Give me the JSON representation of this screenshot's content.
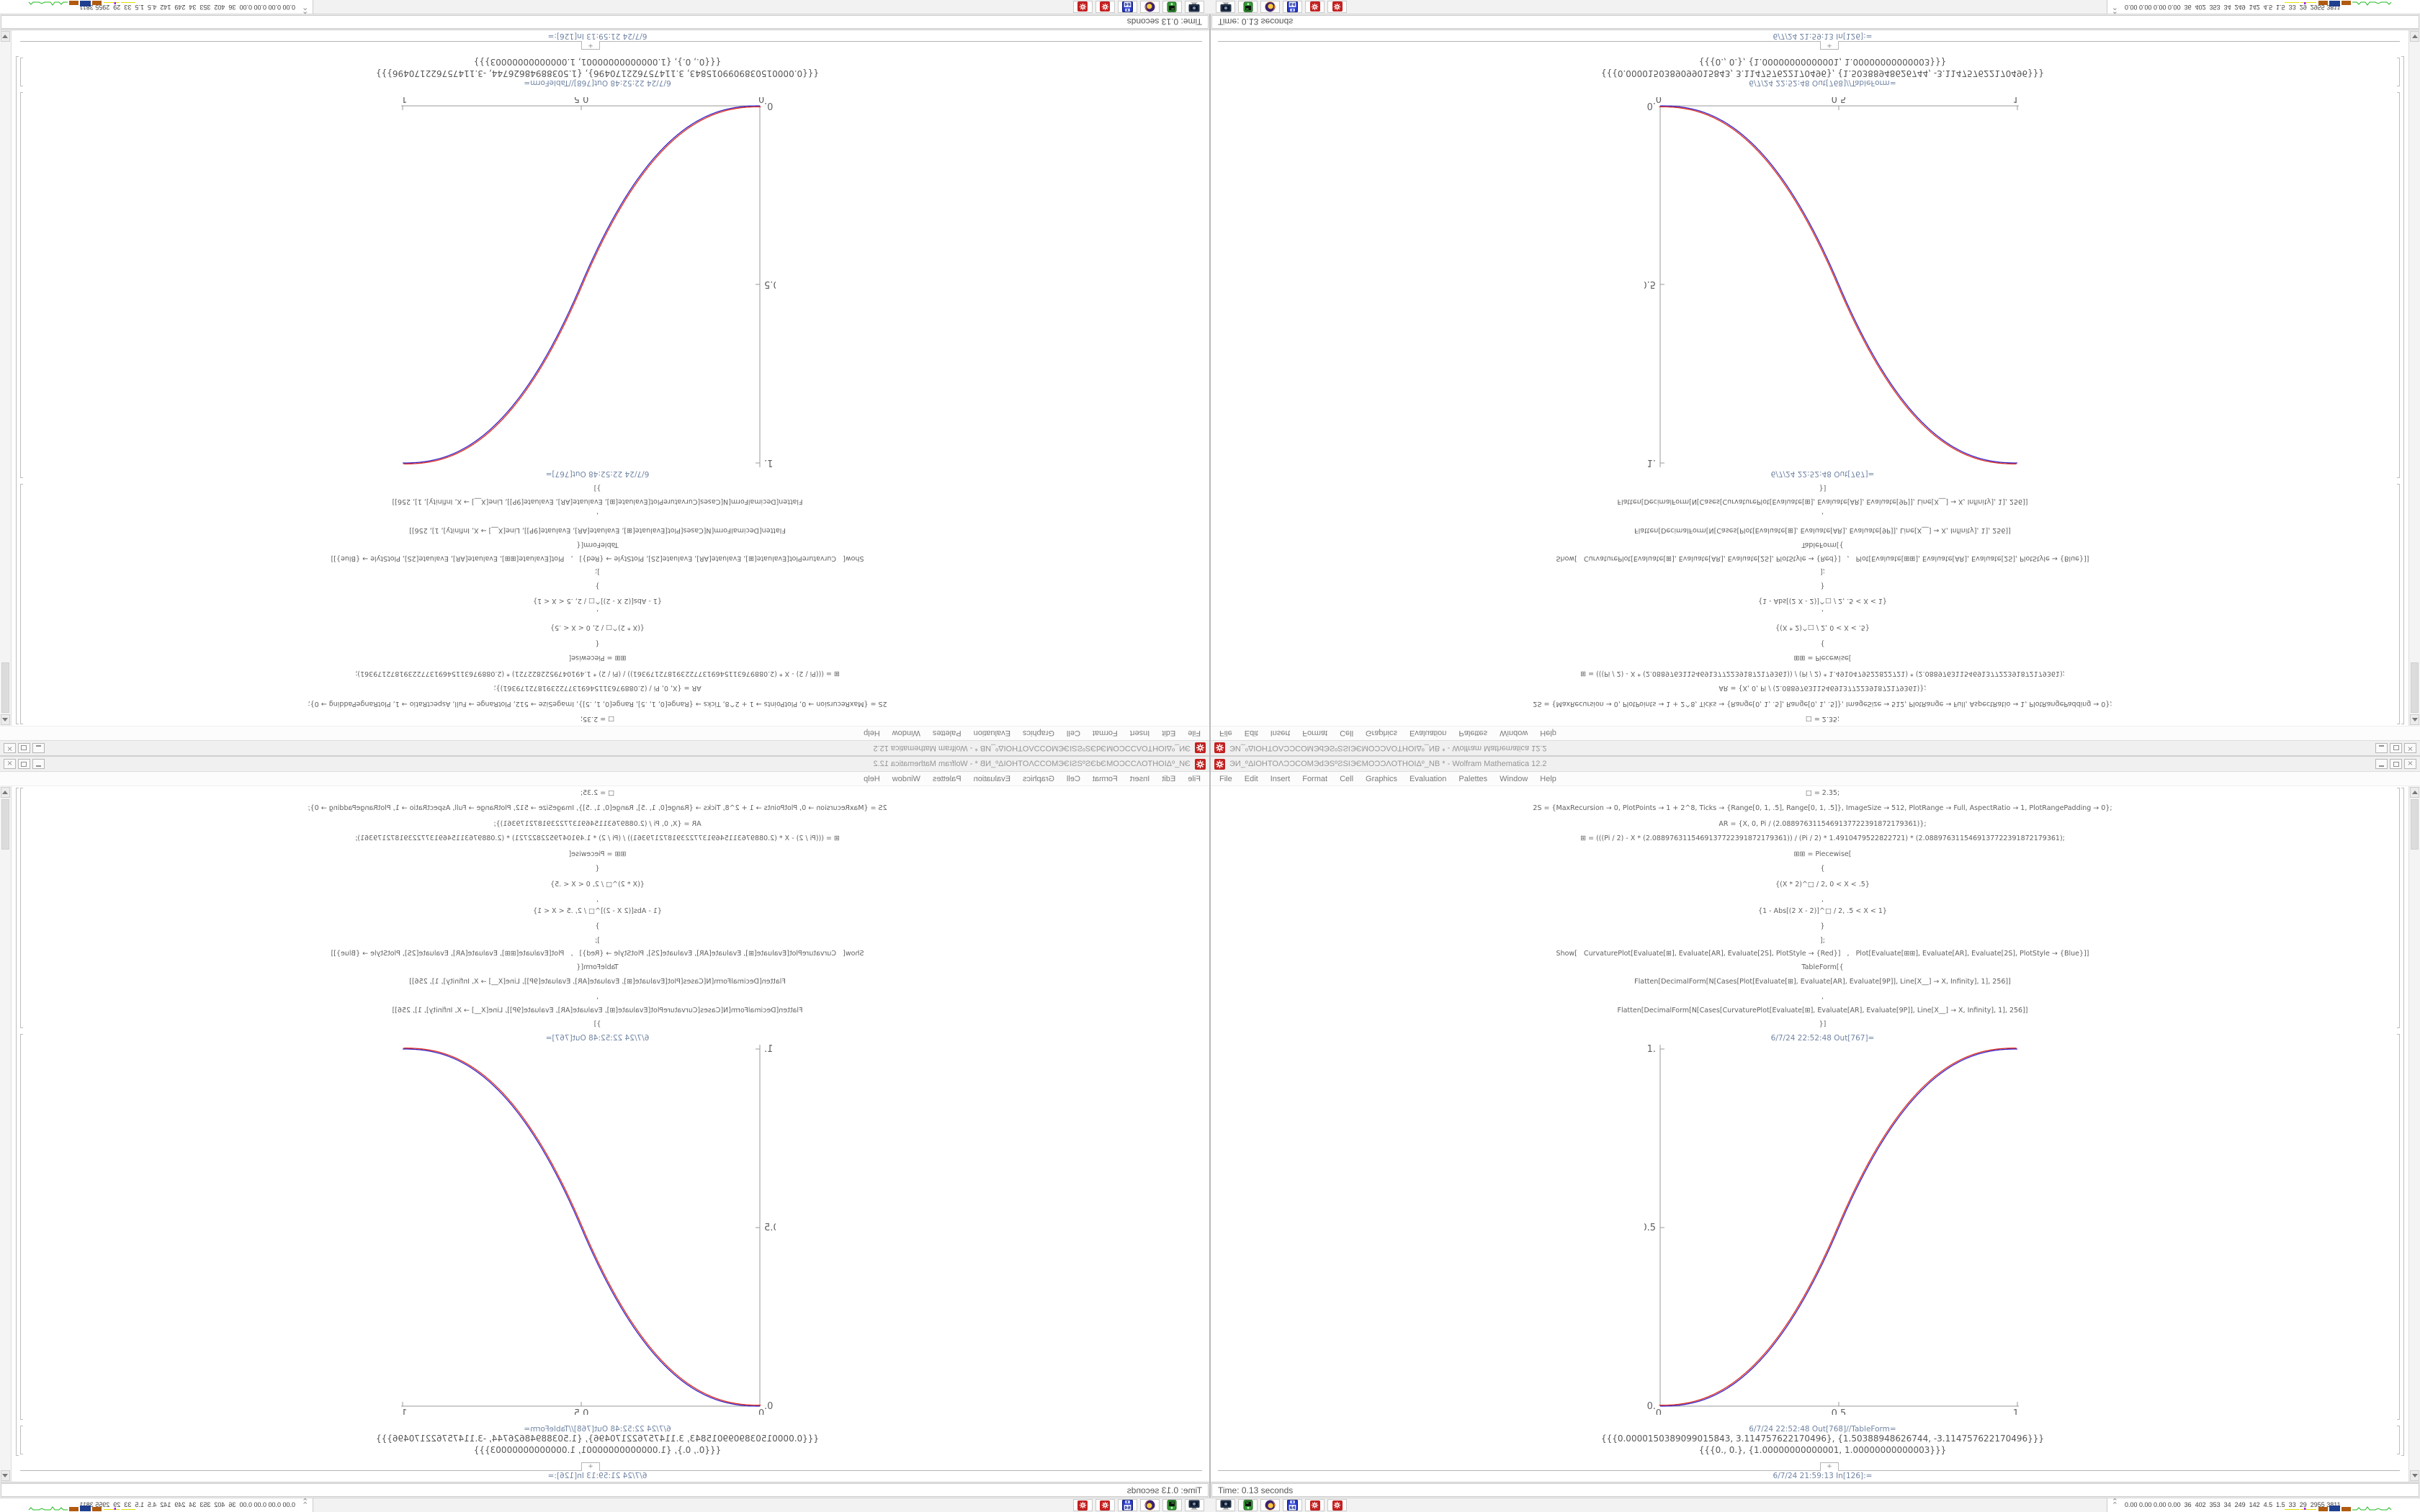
{
  "window": {
    "title": "ЭИ_ºΔIOHTOΛƆƆCOMЭdЭSºƧSIЭЄMOƆƆΛOTHOIΔº_NB * - Wolfram Mathematica 12.2",
    "app_icon": "mathematica-red-gear-icon",
    "menu": [
      "File",
      "Edit",
      "Insert",
      "Format",
      "Cell",
      "Graphics",
      "Evaluation",
      "Palettes",
      "Window",
      "Help"
    ],
    "controls": [
      "minimize",
      "maximize",
      "close"
    ],
    "close_glyph": "×"
  },
  "notebook": {
    "code_lines": [
      "□ = 2.35;",
      "2S = {MaxRecursion → 0, PlotPoints → 1 + 2^8, Ticks → {Range[0, 1, .5], Range[0, 1, .5]}, ImageSize → 512, PlotRange → Full, AspectRatio → 1, PlotRangePadding → 0};",
      "AR = {X, 0, Pi / (2.0889763115469137722391872179361)};",
      "⊞ = (((Pi / 2) - X * (2.0889763115469137722391872179361)) / (Pi / 2) * 1.4910479522822721) * (2.0889763115469137722391872179361);",
      "⊞⊞ = Piecewise[",
      "{",
      "{(X * 2)^□ / 2, 0 < X < .5}",
      ",",
      "{1 - Abs[(2 X - 2)]^□ / 2, .5 < X < 1}",
      "}",
      "];",
      "Show[   CurvaturePlot[Evaluate[⊞], Evaluate[AR], Evaluate[2S], PlotStyle → {Red}]   ,   Plot[Evaluate[⊞⊞], Evaluate[AR], Evaluate[2S], PlotStyle → {Blue}]]",
      "TableForm[{",
      "Flatten[DecimalForm[N[Cases[Plot[Evaluate[⊞], Evaluate[AR], Evaluate[9P]], Line[X__] → X, Infinity], 1], 256]]",
      ",",
      "Flatten[DecimalForm[N[Cases[CurvaturePlot[Evaluate[⊞], Evaluate[AR], Evaluate[9P]], Line[X__] → X, Infinity], 1], 256]]",
      "}]"
    ],
    "out_plot_label": "6/7/24 22:52:48 Out[767]=",
    "out_table_label": "6/7/24 22:52:48 Out[768]//TableForm=",
    "output_rows": [
      "{{{0.0000150389099015843, 3.114757622170496}, {1.50388948626744, -3.114757622170496}}}",
      "{{{0., 0.}, {1.00000000000001, 1.00000000000003}}}"
    ],
    "next_in_label": "6/7/24 21:59:13 In[126]:=",
    "insert_tab_glyph": "+"
  },
  "status_bar": {
    "time_text": "Time: 0.13 seconds"
  },
  "taskbar": {
    "buttons": [
      "virtual-machine-monitor-icon",
      "green-system-utility-icon",
      "firefox-browser-icon",
      "floppy-64-icon",
      "mathematica-red-gear-icon",
      "mathematica-red-gear-icon"
    ],
    "tray": {
      "expand_chevron": "^",
      "values": "0.00 0.00 0.00 0.00  36  402  353  34  249  142  4.5  1.5  33  29  2955 3811",
      "sparkline_colors": {
        "cpu_yellow": "#e0e000",
        "io_brown": "#b05a10",
        "mem_blue": "#1f3f8f",
        "net_green": "#22bb22",
        "marker_purple": "#a020f0"
      }
    }
  },
  "chart_data": {
    "type": "line",
    "title": "6/7/24 22:52:48 Out[767]=",
    "xlabel": "",
    "ylabel": "",
    "xlim": [
      0,
      1
    ],
    "ylim": [
      0,
      1
    ],
    "grid": false,
    "legend": "none",
    "axes_style": "left-and-bottom-only",
    "x_tick_labels": [
      "0.",
      "0.5",
      "1."
    ],
    "y_tick_labels": [
      "0.",
      "0.5",
      "1."
    ],
    "exponent": 2.35,
    "series": [
      {
        "name": "CurvaturePlot[Evaluate[⊞]] (Red)",
        "color": "#dc2a1e"
      },
      {
        "name": "Plot[Evaluate[⊞⊞]] piecewise smoothstep (Blue)",
        "color": "#3a23c8"
      }
    ],
    "points": [
      [
        0,
        0
      ],
      [
        0.05,
        0.002
      ],
      [
        0.1,
        0.011
      ],
      [
        0.15,
        0.03
      ],
      [
        0.2,
        0.058
      ],
      [
        0.25,
        0.098
      ],
      [
        0.3,
        0.151
      ],
      [
        0.35,
        0.216
      ],
      [
        0.4,
        0.296
      ],
      [
        0.45,
        0.39
      ],
      [
        0.5,
        0.5
      ],
      [
        0.55,
        0.61
      ],
      [
        0.6,
        0.704
      ],
      [
        0.65,
        0.784
      ],
      [
        0.7,
        0.849
      ],
      [
        0.75,
        0.902
      ],
      [
        0.8,
        0.942
      ],
      [
        0.85,
        0.971
      ],
      [
        0.9,
        0.989
      ],
      [
        0.95,
        0.998
      ],
      [
        1,
        1
      ]
    ],
    "table_form": {
      "label": "6/7/24 22:52:48 Out[768]//TableForm=",
      "rows_numeric": [
        [
          [
            1.50389099015843e-05,
            3.114757622170496
          ],
          [
            1.50388948626744,
            -3.114757622170496
          ]
        ],
        [
          [
            0.0,
            0.0
          ],
          [
            1.00000000000001,
            1.00000000000003
          ]
        ]
      ]
    }
  }
}
